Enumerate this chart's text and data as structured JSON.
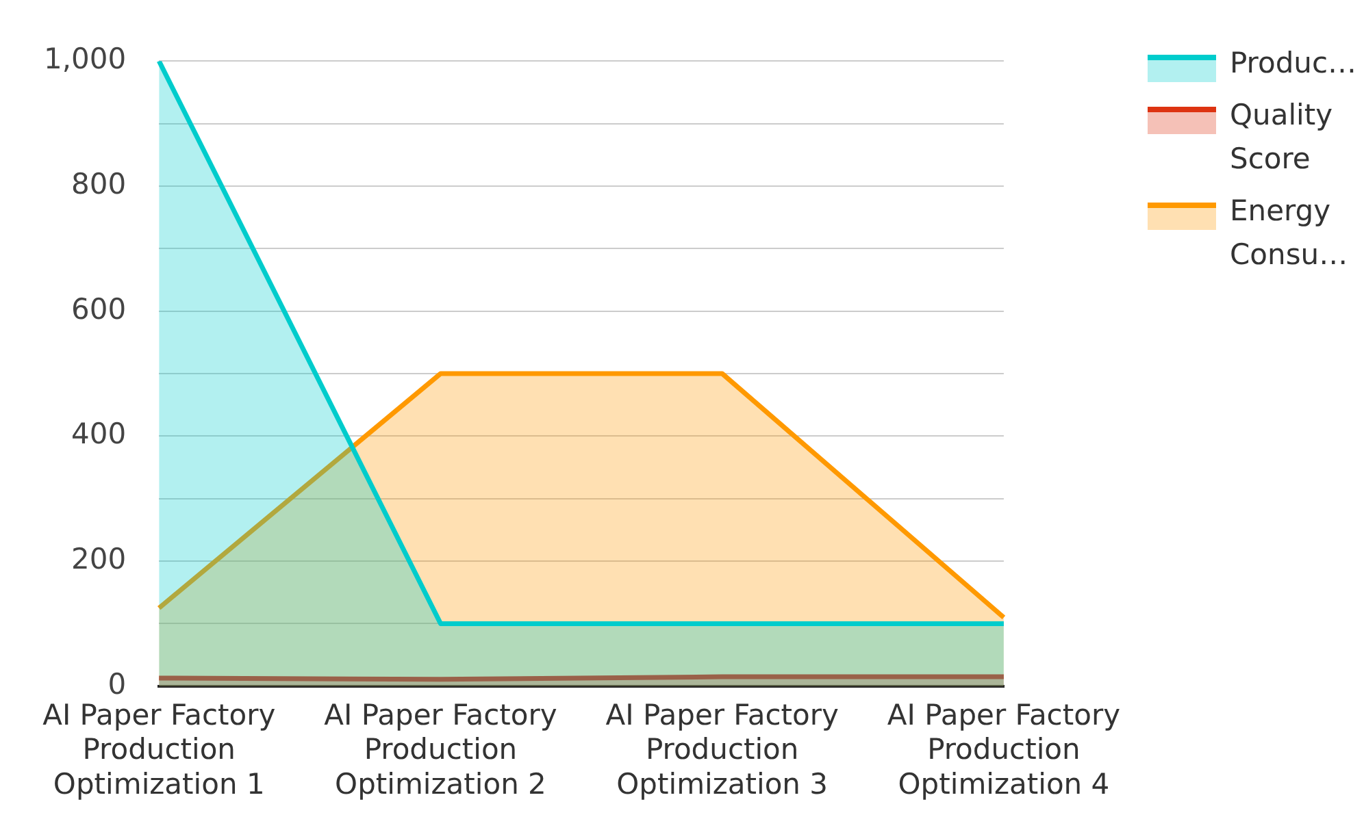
{
  "chart_data": {
    "type": "area",
    "categories": [
      "AI Paper Factory Production Optimization 1",
      "AI Paper Factory Production Optimization 2",
      "AI Paper Factory Production Optimization 3",
      "AI Paper Factory Production Optimization 4"
    ],
    "series": [
      {
        "name": "Produc…",
        "color": "#00cccc",
        "values": [
          1000,
          100,
          100,
          100
        ]
      },
      {
        "name": "Quality Score",
        "color": "#dd3311",
        "values": [
          13,
          11,
          15,
          15
        ]
      },
      {
        "name": "Energy Consu…",
        "color": "#ff9900",
        "values": [
          125,
          500,
          500,
          110
        ]
      }
    ],
    "ylim": [
      0,
      1000
    ],
    "yticks": [
      0,
      {
        "value": 100,
        "label": null
      },
      200,
      {
        "value": 300,
        "label": null
      },
      400,
      {
        "value": 500,
        "label": null
      },
      600,
      {
        "value": 700,
        "label": null
      },
      800,
      {
        "value": 900,
        "label": null
      },
      {
        "value": 1000,
        "label": "1,000"
      }
    ],
    "grid": "y",
    "legend": "right",
    "marker": "none",
    "line_style": "solid"
  }
}
